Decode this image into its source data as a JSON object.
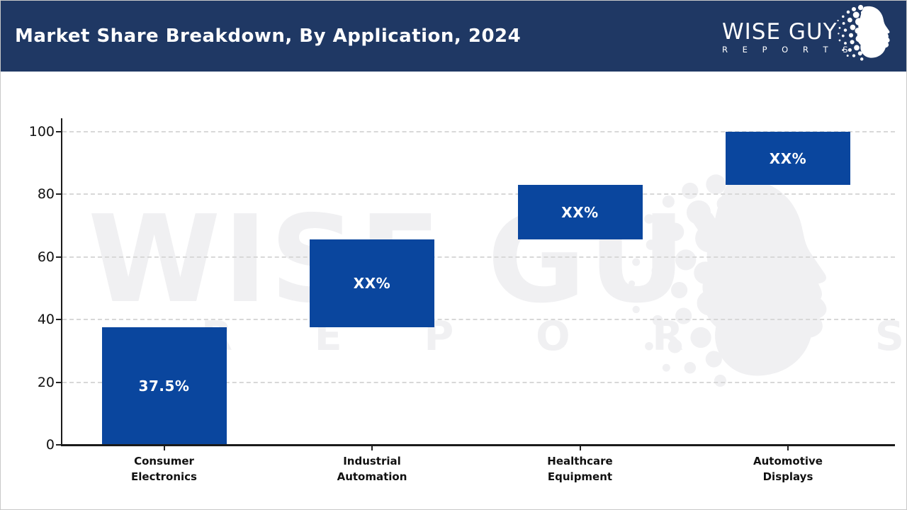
{
  "header": {
    "title": "Market Share Breakdown, By Application, 2024",
    "logo": {
      "name": "WISE GUY",
      "subtitle": "R E P O R T S"
    }
  },
  "watermark": {
    "name": "WISE GUY",
    "subtitle": "R E P O R T S"
  },
  "chart_data": {
    "type": "bar",
    "subtype": "waterfall-style floating segment bars",
    "title": "Market Share Breakdown, By Application, 2024",
    "categories": [
      "Consumer Electronics",
      "Industrial Automation",
      "Healthcare Equipment",
      "Automotive Displays"
    ],
    "segments": [
      {
        "category": "Consumer Electronics",
        "start": 0,
        "end": 37.5,
        "label": "37.5%"
      },
      {
        "category": "Industrial Automation",
        "start": 37.5,
        "end": 65.5,
        "label": "XX%"
      },
      {
        "category": "Healthcare Equipment",
        "start": 65.5,
        "end": 83,
        "label": "XX%"
      },
      {
        "category": "Automotive Displays",
        "start": 83,
        "end": 100,
        "label": "XX%"
      }
    ],
    "yticks": [
      0,
      20,
      40,
      60,
      80,
      100
    ],
    "ylim": [
      0,
      104
    ],
    "xlabel": "",
    "ylabel": "",
    "grid": "horizontal dashed",
    "legend_position": "none"
  },
  "colors": {
    "header_bg": "#1f3864",
    "bar_fill": "#0a469e",
    "bar_label_text": "#ffffff",
    "title_text": "#ffffff",
    "axis_line": "#1a1a1a",
    "tick_label_text": "#111111",
    "grid_line": "#d8d8d8",
    "watermark": "#f0f0f2",
    "page_border": "#c9c9c9",
    "background": "#ffffff"
  }
}
